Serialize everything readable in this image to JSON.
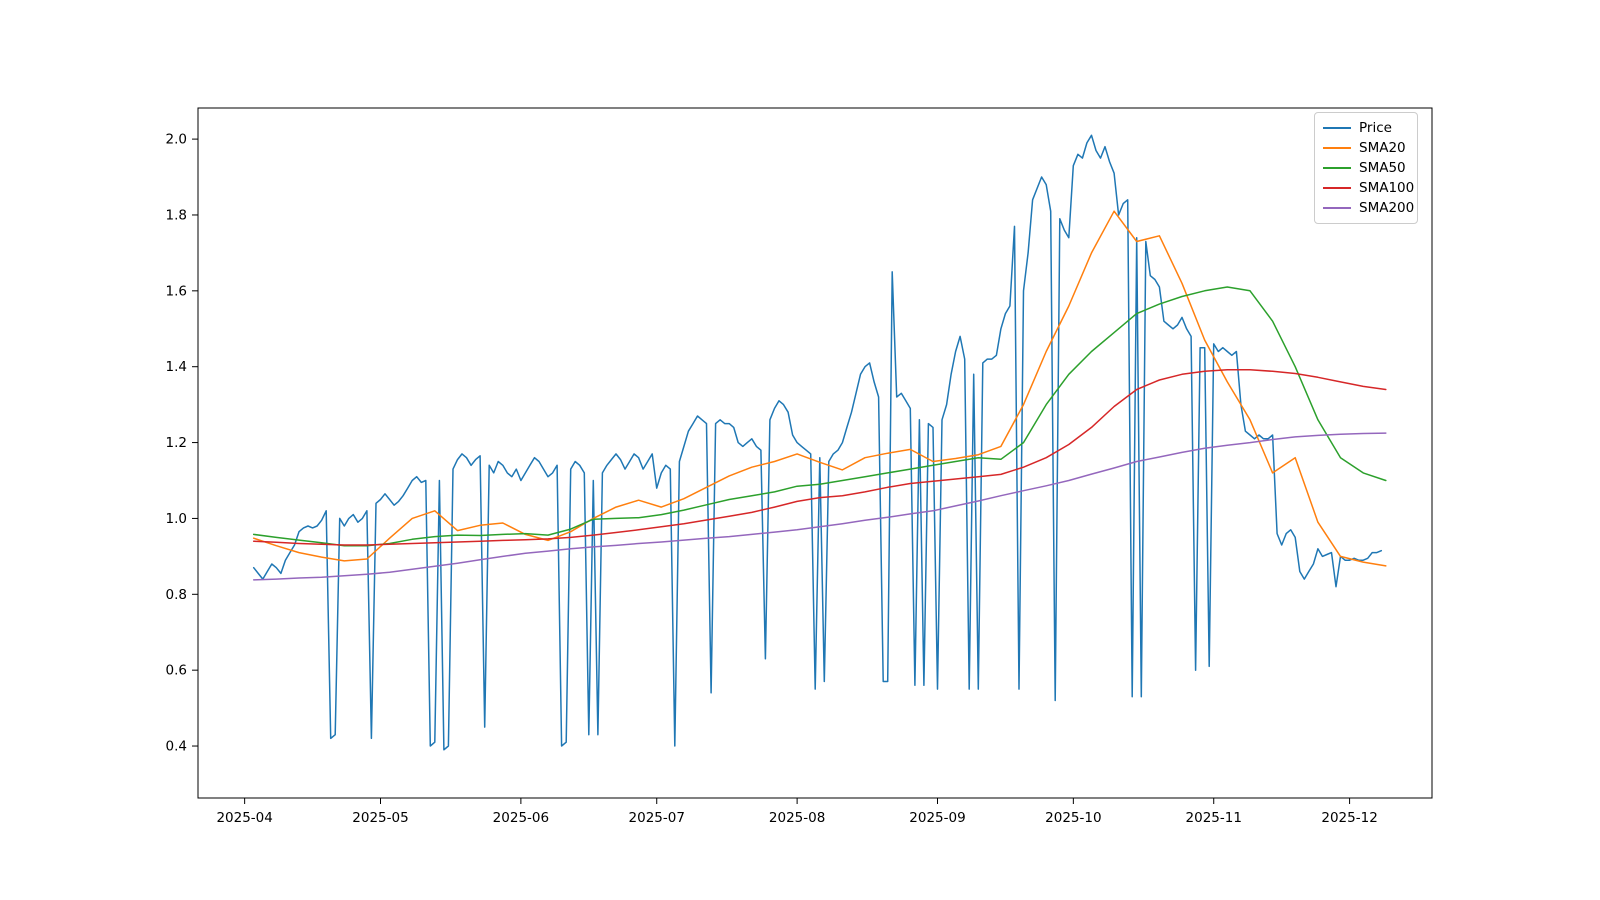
{
  "figure": {
    "background": "#ffffff",
    "spine_color": "#000000",
    "tick_color": "#000000",
    "tick_label_color": "#000000"
  },
  "chart_data": {
    "type": "line",
    "title": "",
    "xlabel": "",
    "ylabel": "",
    "grid": false,
    "ylim": [
      0.263,
      2.082
    ],
    "yticks": [
      "0.4",
      "0.6",
      "0.8",
      "1.0",
      "1.2",
      "1.4",
      "1.6",
      "1.8",
      "2.0"
    ],
    "x_axis": {
      "unit": "days",
      "days_before_first_tick": 10.3,
      "total_days_span": 272.5,
      "first_tick_date": "2025-04-01"
    },
    "xticks": [
      {
        "label": "2025-04",
        "day": 0
      },
      {
        "label": "2025-05",
        "day": 30
      },
      {
        "label": "2025-06",
        "day": 61
      },
      {
        "label": "2025-07",
        "day": 91
      },
      {
        "label": "2025-08",
        "day": 122
      },
      {
        "label": "2025-09",
        "day": 153
      },
      {
        "label": "2025-10",
        "day": 183
      },
      {
        "label": "2025-11",
        "day": 214
      },
      {
        "label": "2025-12",
        "day": 244
      }
    ],
    "legend": {
      "position": "upper right"
    },
    "series": [
      {
        "name": "Price",
        "color": "#1f77b4",
        "start_day": 2,
        "step_days": 1,
        "values": [
          0.87,
          0.855,
          0.84,
          0.86,
          0.88,
          0.87,
          0.855,
          0.89,
          0.91,
          0.93,
          0.965,
          0.975,
          0.98,
          0.975,
          0.98,
          0.995,
          1.02,
          0.42,
          0.43,
          1.0,
          0.98,
          1.0,
          1.01,
          0.99,
          1.0,
          1.02,
          0.42,
          1.04,
          1.05,
          1.065,
          1.05,
          1.035,
          1.045,
          1.06,
          1.08,
          1.1,
          1.11,
          1.095,
          1.1,
          0.4,
          0.41,
          1.1,
          0.39,
          0.4,
          1.13,
          1.155,
          1.17,
          1.16,
          1.14,
          1.155,
          1.165,
          0.45,
          1.14,
          1.12,
          1.15,
          1.14,
          1.12,
          1.11,
          1.13,
          1.1,
          1.12,
          1.14,
          1.16,
          1.15,
          1.13,
          1.11,
          1.12,
          1.14,
          0.4,
          0.41,
          1.13,
          1.15,
          1.14,
          1.12,
          0.43,
          1.1,
          0.43,
          1.12,
          1.14,
          1.155,
          1.17,
          1.155,
          1.13,
          1.15,
          1.17,
          1.16,
          1.13,
          1.15,
          1.17,
          1.08,
          1.12,
          1.14,
          1.13,
          0.4,
          1.15,
          1.19,
          1.23,
          1.25,
          1.27,
          1.26,
          1.25,
          0.54,
          1.25,
          1.26,
          1.25,
          1.25,
          1.24,
          1.2,
          1.19,
          1.2,
          1.21,
          1.19,
          1.18,
          0.63,
          1.26,
          1.29,
          1.31,
          1.3,
          1.28,
          1.22,
          1.2,
          1.19,
          1.18,
          1.17,
          0.55,
          1.16,
          0.57,
          1.15,
          1.17,
          1.18,
          1.2,
          1.24,
          1.28,
          1.33,
          1.38,
          1.4,
          1.41,
          1.36,
          1.32,
          0.57,
          0.57,
          1.65,
          1.32,
          1.33,
          1.31,
          1.29,
          0.56,
          1.26,
          0.56,
          1.25,
          1.24,
          0.55,
          1.26,
          1.3,
          1.38,
          1.44,
          1.48,
          1.42,
          0.55,
          1.38,
          0.55,
          1.41,
          1.42,
          1.42,
          1.43,
          1.5,
          1.54,
          1.56,
          1.77,
          0.55,
          1.6,
          1.7,
          1.84,
          1.87,
          1.9,
          1.88,
          1.81,
          0.52,
          1.79,
          1.76,
          1.74,
          1.93,
          1.96,
          1.95,
          1.99,
          2.01,
          1.97,
          1.95,
          1.98,
          1.94,
          1.91,
          1.8,
          1.83,
          1.84,
          0.53,
          1.74,
          0.53,
          1.73,
          1.64,
          1.63,
          1.61,
          1.52,
          1.51,
          1.5,
          1.51,
          1.53,
          1.5,
          1.48,
          0.6,
          1.45,
          1.45,
          0.61,
          1.46,
          1.44,
          1.45,
          1.44,
          1.43,
          1.44,
          1.3,
          1.23,
          1.22,
          1.21,
          1.22,
          1.21,
          1.21,
          1.22,
          0.96,
          0.93,
          0.96,
          0.97,
          0.95,
          0.86,
          0.84,
          0.86,
          0.88,
          0.92,
          0.9,
          0.905,
          0.91,
          0.82,
          0.9,
          0.89,
          0.89,
          0.895,
          0.89,
          0.89,
          0.895,
          0.91,
          0.91,
          0.915
        ]
      },
      {
        "name": "SMA20",
        "color": "#ff7f0e",
        "start_day": 2,
        "step_days": 5,
        "values": [
          0.948,
          0.928,
          0.91,
          0.898,
          0.888,
          0.893,
          0.948,
          1.0,
          1.02,
          0.968,
          0.982,
          0.988,
          0.958,
          0.942,
          0.965,
          1.0,
          1.03,
          1.048,
          1.03,
          1.052,
          1.082,
          1.112,
          1.135,
          1.15,
          1.17,
          1.148,
          1.128,
          1.16,
          1.172,
          1.182,
          1.15,
          1.158,
          1.168,
          1.19,
          1.3,
          1.44,
          1.56,
          1.7,
          1.81,
          1.73,
          1.745,
          1.62,
          1.47,
          1.36,
          1.26,
          1.12,
          1.16,
          0.99,
          0.9,
          0.885,
          0.875
        ]
      },
      {
        "name": "SMA50",
        "color": "#2ca02c",
        "start_day": 2,
        "step_days": 5,
        "values": [
          0.958,
          0.95,
          0.943,
          0.936,
          0.928,
          0.928,
          0.934,
          0.945,
          0.952,
          0.956,
          0.955,
          0.958,
          0.96,
          0.956,
          0.972,
          0.998,
          1.0,
          1.002,
          1.01,
          1.022,
          1.036,
          1.05,
          1.06,
          1.07,
          1.085,
          1.09,
          1.1,
          1.11,
          1.12,
          1.13,
          1.14,
          1.15,
          1.16,
          1.156,
          1.2,
          1.3,
          1.38,
          1.44,
          1.49,
          1.54,
          1.565,
          1.585,
          1.6,
          1.61,
          1.6,
          1.52,
          1.4,
          1.26,
          1.16,
          1.12,
          1.1
        ]
      },
      {
        "name": "SMA100",
        "color": "#d62728",
        "start_day": 2,
        "step_days": 5,
        "values": [
          0.94,
          0.937,
          0.934,
          0.932,
          0.93,
          0.93,
          0.932,
          0.934,
          0.936,
          0.938,
          0.94,
          0.942,
          0.944,
          0.946,
          0.95,
          0.956,
          0.963,
          0.97,
          0.978,
          0.986,
          0.996,
          1.006,
          1.016,
          1.03,
          1.045,
          1.055,
          1.06,
          1.07,
          1.082,
          1.092,
          1.098,
          1.104,
          1.11,
          1.116,
          1.135,
          1.16,
          1.195,
          1.24,
          1.295,
          1.34,
          1.365,
          1.38,
          1.388,
          1.392,
          1.392,
          1.388,
          1.382,
          1.372,
          1.36,
          1.348,
          1.34
        ]
      },
      {
        "name": "SMA200",
        "color": "#9467bd",
        "start_day": 2,
        "step_days": 5,
        "values": [
          0.838,
          0.84,
          0.843,
          0.845,
          0.849,
          0.853,
          0.858,
          0.866,
          0.874,
          0.882,
          0.891,
          0.9,
          0.908,
          0.914,
          0.92,
          0.925,
          0.929,
          0.934,
          0.938,
          0.943,
          0.948,
          0.952,
          0.958,
          0.964,
          0.97,
          0.978,
          0.986,
          0.995,
          1.003,
          1.012,
          1.02,
          1.033,
          1.046,
          1.06,
          1.073,
          1.086,
          1.1,
          1.117,
          1.133,
          1.15,
          1.162,
          1.174,
          1.185,
          1.193,
          1.2,
          1.208,
          1.215,
          1.219,
          1.222,
          1.224,
          1.225
        ]
      }
    ]
  },
  "legend_labels": {
    "price": "Price",
    "sma20": "SMA20",
    "sma50": "SMA50",
    "sma100": "SMA100",
    "sma200": "SMA200"
  }
}
